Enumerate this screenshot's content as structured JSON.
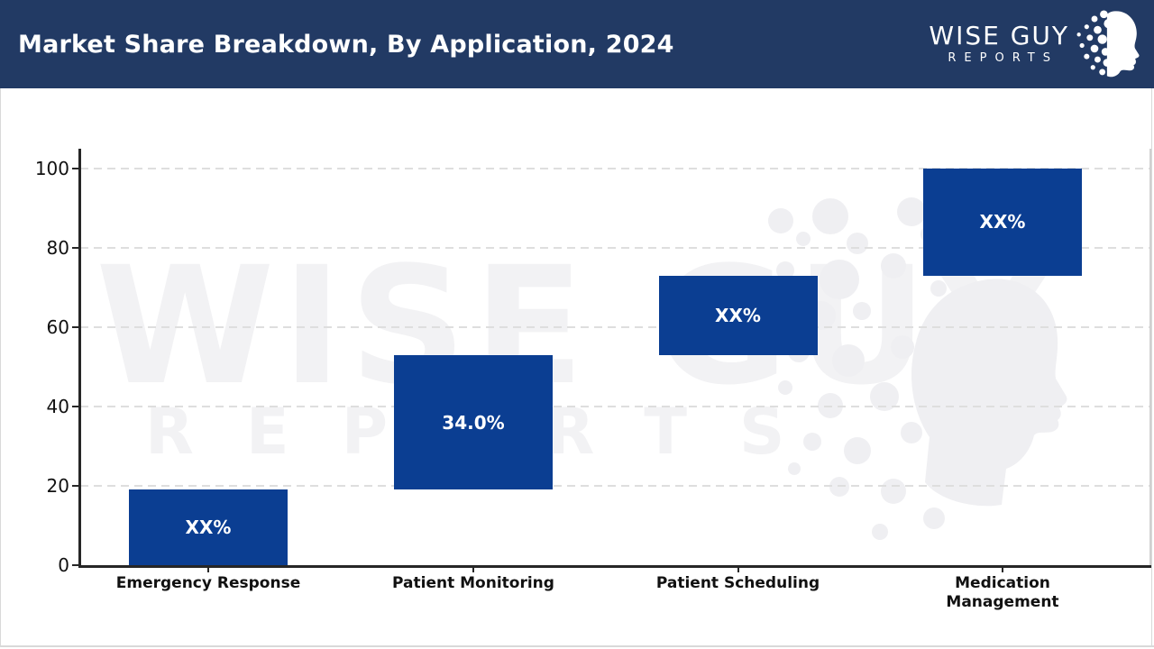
{
  "header": {
    "title": "Market Share Breakdown, By Application, 2024",
    "logo_primary": "WISE GUY",
    "logo_secondary": "REPORTS"
  },
  "watermark": {
    "line1": "WISE GUY",
    "line2": "REPORTS"
  },
  "colors": {
    "header_bg": "#223a64",
    "bar": "#0b3e92",
    "bar_label_text": "#ffffff",
    "gridline": "#dedede",
    "axis": "#262626",
    "watermark": "#f2f2f4"
  },
  "chart_data": {
    "type": "bar",
    "subtype": "waterfall",
    "title": "Market Share Breakdown, By Application, 2024",
    "categories": [
      "Emergency Response",
      "Patient Monitoring",
      "Patient Scheduling",
      "Medication Management"
    ],
    "segments": [
      {
        "category": "Emergency Response",
        "start": 0,
        "end": 19,
        "value": 19,
        "label": "XX%"
      },
      {
        "category": "Patient Monitoring",
        "start": 19,
        "end": 53,
        "value": 34,
        "label": "34.0%"
      },
      {
        "category": "Patient Scheduling",
        "start": 53,
        "end": 73,
        "value": 20,
        "label": "XX%"
      },
      {
        "category": "Medication Management",
        "start": 73,
        "end": 100,
        "value": 27,
        "label": "XX%"
      }
    ],
    "xlabel": "",
    "ylabel": "",
    "ylim": [
      0,
      100
    ],
    "yticks": [
      0,
      20,
      40,
      60,
      80,
      100
    ],
    "grid": "horizontal-dashed",
    "legend": "none",
    "bar_color": "#0b3e92"
  }
}
